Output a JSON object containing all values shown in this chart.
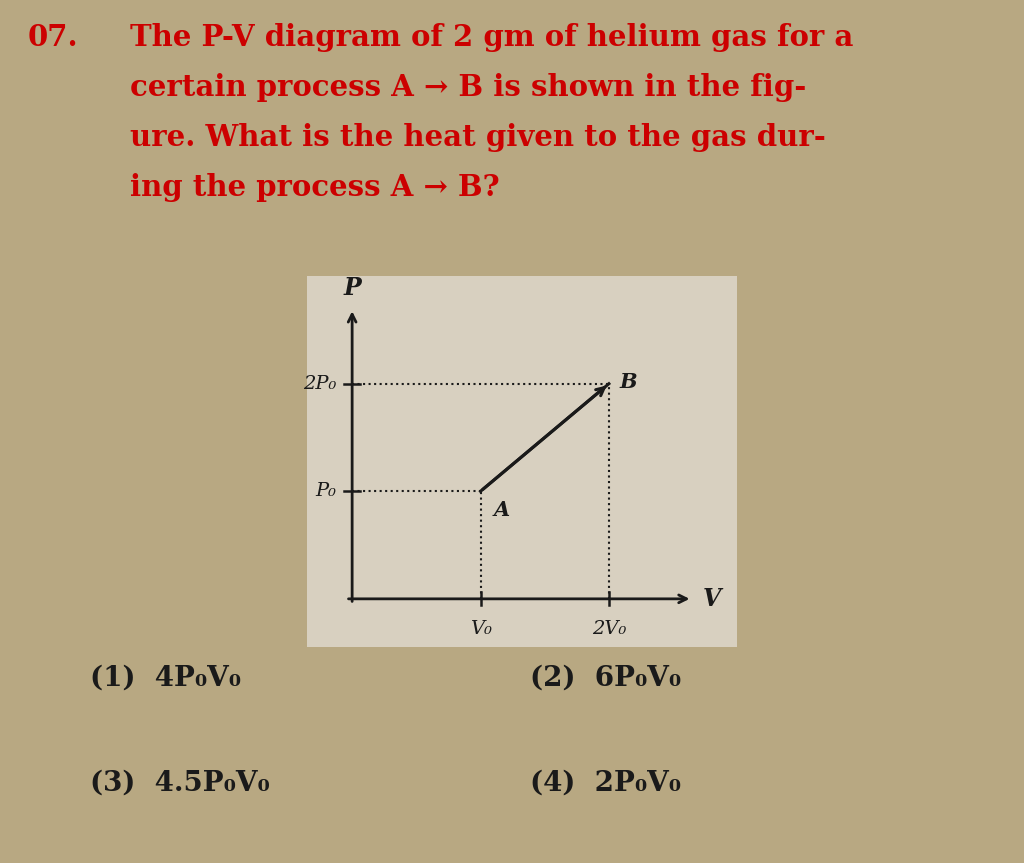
{
  "background_color": "#b8a882",
  "diagram_bg": "#d8d0c0",
  "title_number": "07.",
  "title_lines": [
    "The P-V diagram of 2 gm of helium gas for a",
    "certain process A → B is shown in the fig-",
    "ure. What is the heat given to the gas dur-",
    "ing the process A → B?"
  ],
  "title_color": "#cc0000",
  "title_fontsize": 21,
  "num_color": "#1a1a1a",
  "diagram": {
    "A": [
      1,
      1
    ],
    "B": [
      2,
      2
    ],
    "x_label": "V",
    "y_label": "P",
    "x_tick_labels": [
      "V₀",
      "2V₀"
    ],
    "y_tick_labels": [
      "P₀",
      "2P₀"
    ],
    "line_color": "#1a1a1a",
    "dashed_color": "#1a1a1a",
    "axis_color": "#1a1a1a"
  },
  "options": [
    {
      "num": "(1)",
      "text": "4P₀V₀"
    },
    {
      "num": "(2)",
      "text": "6P₀V₀"
    },
    {
      "num": "(3)",
      "text": "4.5P₀V₀"
    },
    {
      "num": "(4)",
      "text": "2P₀V₀"
    }
  ],
  "options_color": "#1a1a1a",
  "options_fontsize": 20
}
